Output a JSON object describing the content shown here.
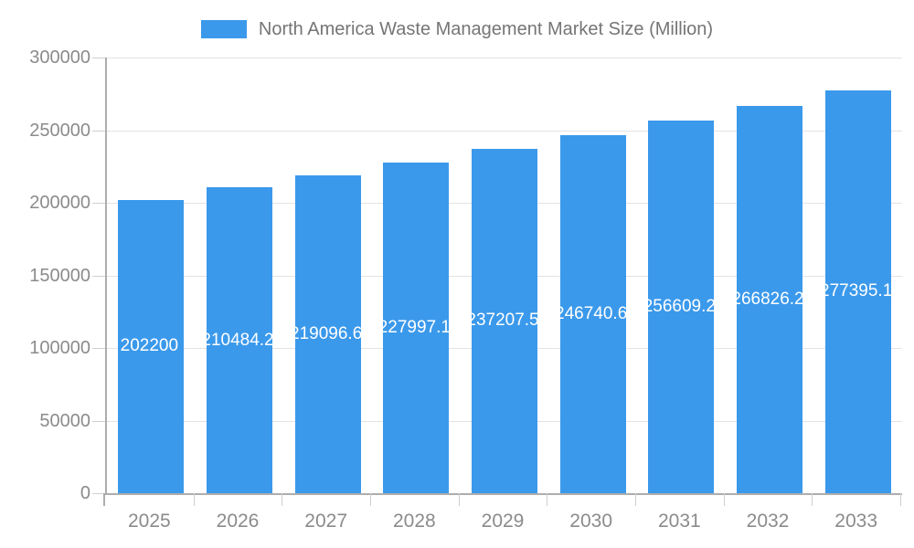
{
  "chart_data": {
    "type": "bar",
    "title": "North America Waste Management Market Size (Million)",
    "legend": {
      "label": "North America Waste Management Market Size (Million)",
      "position": "top-center"
    },
    "categories": [
      "2025",
      "2026",
      "2027",
      "2028",
      "2029",
      "2030",
      "2031",
      "2032",
      "2033"
    ],
    "series": [
      {
        "name": "North America Waste Management Market Size (Million)",
        "values": [
          202200,
          210484.2,
          219096.6,
          227997.1,
          237207.5,
          246740.6,
          256609.2,
          266826.2,
          277395.1
        ],
        "value_labels": [
          "202200",
          "210484.2",
          "219096.6",
          "227997.1",
          "237207.5",
          "246740.6",
          "256609.2",
          "266826.2",
          "277395.1"
        ]
      }
    ],
    "xlabel": "",
    "ylabel": "",
    "ylim": [
      0,
      300000
    ],
    "yticks": [
      0,
      50000,
      100000,
      150000,
      200000,
      250000,
      300000
    ],
    "ytick_labels": [
      "0",
      "50000",
      "100000",
      "150000",
      "200000",
      "250000",
      "300000"
    ],
    "grid": "horizontal",
    "colors": {
      "bar": "#3B99EB",
      "value_label_text": "#ffffff",
      "axis_line": "#ADADAD",
      "tick_line": "#CFCFCF",
      "gridline": "#E3E3E3",
      "axis_text": "#8B8B8B",
      "legend_text": "#757575",
      "background": "#FFFFFF"
    }
  }
}
